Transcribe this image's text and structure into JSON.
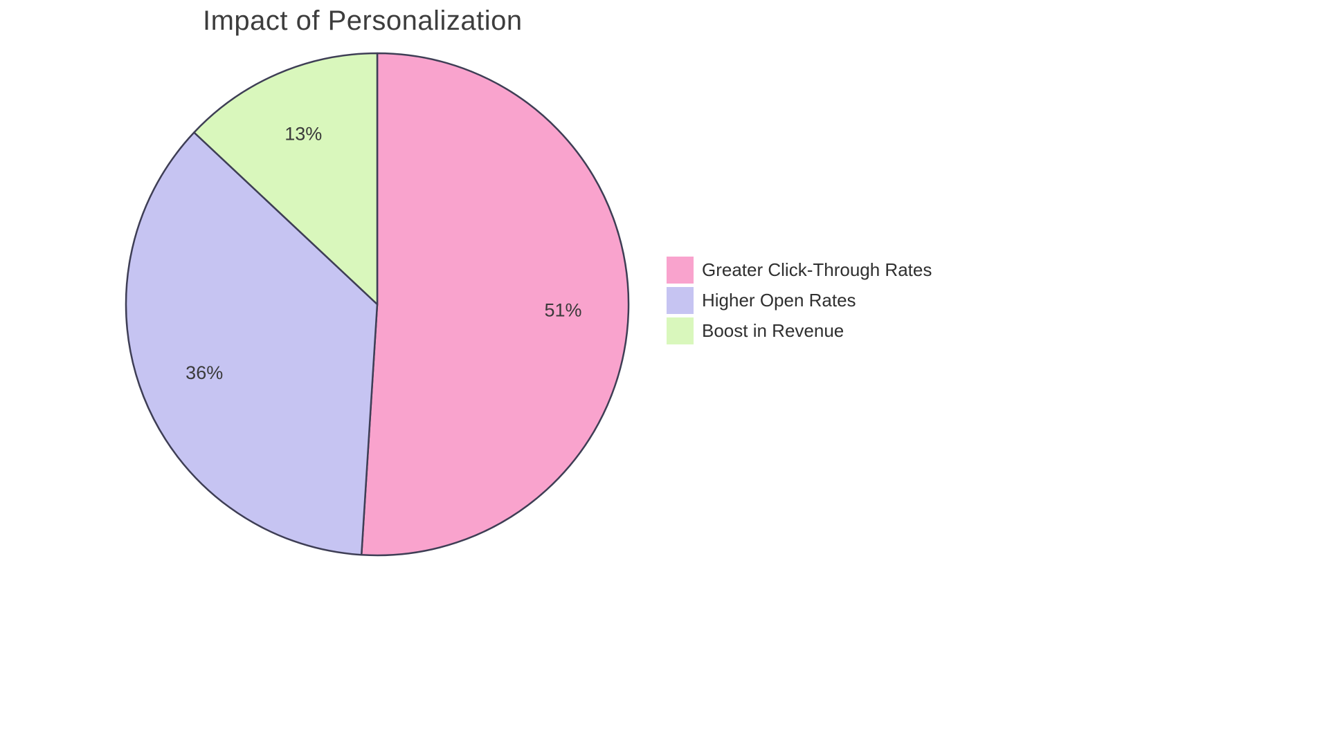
{
  "title": "Impact of Personalization",
  "chart_data": {
    "type": "pie",
    "title": "Impact of Personalization",
    "labels": [
      "Greater Click-Through Rates",
      "Higher Open Rates",
      "Boost in Revenue"
    ],
    "values": [
      51,
      36,
      13
    ],
    "value_labels": [
      "51%",
      "36%",
      "13%"
    ],
    "colors": [
      "#F9A3CD",
      "#C6C4F2",
      "#D9F7BC"
    ],
    "stroke_color": "#3E3E55",
    "start_angle_deg": 0,
    "direction": "clockwise",
    "legend_position": "right",
    "legend_entries": [
      "Greater Click-Through Rates",
      "Higher Open Rates",
      "Boost in Revenue"
    ]
  }
}
